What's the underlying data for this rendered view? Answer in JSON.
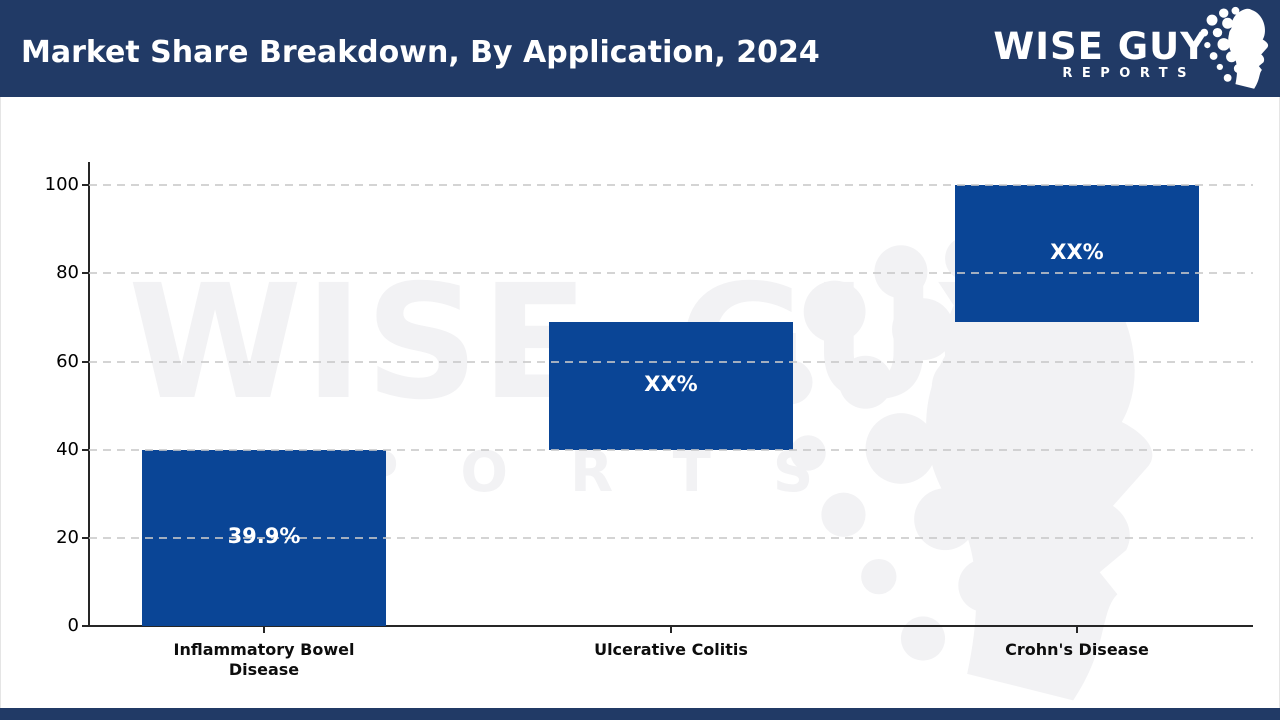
{
  "header": {
    "title": "Market Share Breakdown, By Application, 2024",
    "logo": {
      "name_line": "WISE GUY",
      "sub_line": "REPORTS"
    }
  },
  "watermark": {
    "name_line": "WISE GUY",
    "sub_line": "REPORTS"
  },
  "chart_data": {
    "type": "bar",
    "subtype": "floating-waterfall-segments",
    "title": "Market Share Breakdown, By Application, 2024",
    "categories": [
      "Inflammatory Bowel Disease",
      "Ulcerative Colitis",
      "Crohn's Disease"
    ],
    "segments": [
      {
        "category": "Inflammatory Bowel Disease",
        "start": 0,
        "end": 39.9,
        "label": "39.9%"
      },
      {
        "category": "Ulcerative Colitis",
        "start": 39.9,
        "end": 69,
        "label": "XX%"
      },
      {
        "category": "Crohn's Disease",
        "start": 69,
        "end": 100,
        "label": "XX%"
      }
    ],
    "yticks": [
      0,
      20,
      40,
      60,
      80,
      100
    ],
    "ylim": [
      0,
      105
    ],
    "xlabel": "",
    "ylabel": "",
    "grid": "dashed horizontal, drawn above bars",
    "legend": "none",
    "bar_color": "#0a4596",
    "value_label_color": "#ffffff",
    "axis_color": "#262626",
    "grid_color": "#c9c9c9"
  },
  "colors": {
    "header_bg": "#213a66",
    "footer_bg": "#213a66",
    "bar": "#0a4596",
    "watermark": "#f2f2f4",
    "background": "#ffffff"
  }
}
